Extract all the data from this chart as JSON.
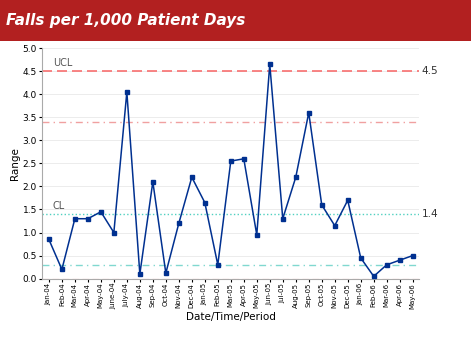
{
  "title": "Falls per 1,000 Patient Days",
  "title_bg": "#B22020",
  "title_color": "white",
  "xlabel": "Date/Time/Period",
  "ylabel": "Range",
  "ylim": [
    0,
    5.0
  ],
  "categories": [
    "Jan-04",
    "Feb-04",
    "Mar-04",
    "Apr-04",
    "May-04",
    "June-04",
    "July-04",
    "Aug-04",
    "Sep-04",
    "Oct-04",
    "Nov-04",
    "Dec-04",
    "Jan-05",
    "Feb-05",
    "Mar-05",
    "Apr-05",
    "May-05",
    "Jun-05",
    "Jul-05",
    "Aug-05",
    "Sep-05",
    "Oct-05",
    "Nov-05",
    "Dec-05",
    "Jan-06",
    "Feb-06",
    "Mar-06",
    "Apr-06",
    "May-06"
  ],
  "values": [
    0.85,
    0.2,
    1.3,
    1.3,
    1.45,
    1.0,
    4.05,
    0.1,
    2.1,
    0.12,
    1.2,
    2.2,
    1.65,
    0.3,
    2.55,
    2.6,
    0.95,
    4.65,
    1.3,
    2.2,
    3.6,
    1.6,
    1.15,
    1.7,
    0.45,
    0.05,
    0.3,
    0.4,
    0.5
  ],
  "line_color": "#003090",
  "marker_color": "#003090",
  "UCL": 4.5,
  "UCL_color": "#F87070",
  "UCL_label": "UCL",
  "UCL_value_label": "4.5",
  "CL": 1.4,
  "CL_color": "#50D0C0",
  "CL_label": "CL",
  "CL_value_label": "1.4",
  "LCL": 0.0,
  "LCL_color": "#F87070",
  "mid_upper": 3.4,
  "mid_upper_color": "#F0A0A0",
  "mid_lower": 0.3,
  "mid_lower_color": "#80D8D0",
  "bg_color": "#FFFFFF",
  "plot_bg_color": "#FFFFFF"
}
